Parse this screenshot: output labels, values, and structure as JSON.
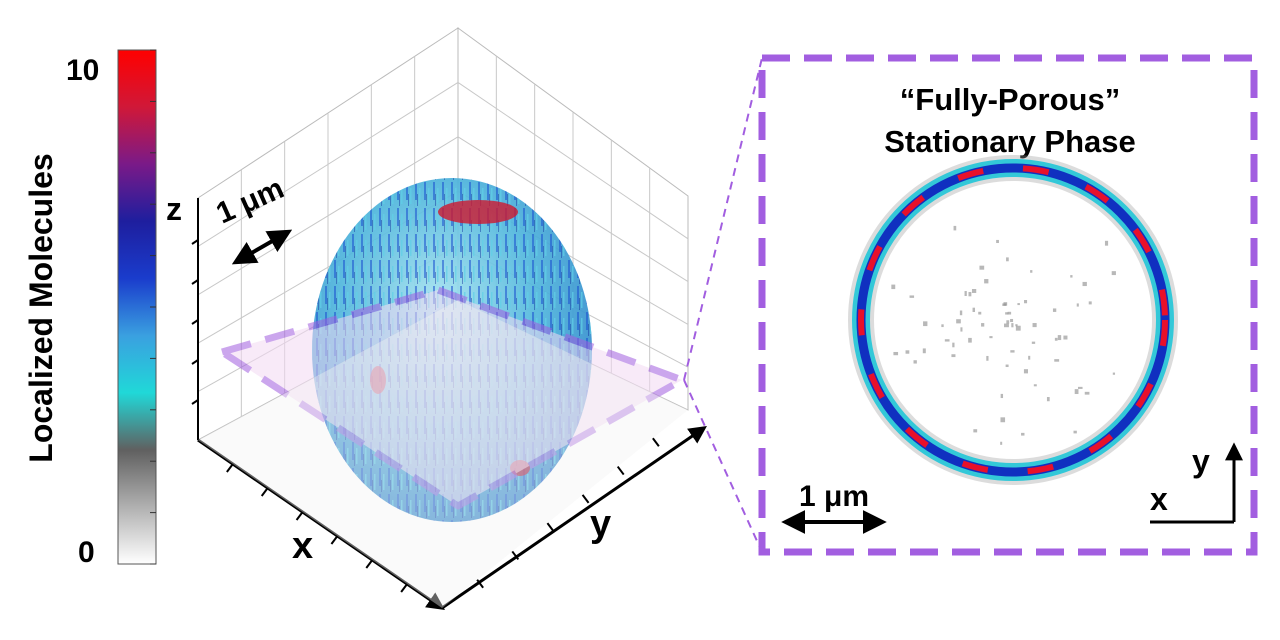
{
  "colorbar": {
    "title": "Localized Molecules",
    "max_label": "10",
    "min_label": "0",
    "stops": [
      "#ffffff",
      "#b0b0b0",
      "#606060",
      "#20d8d8",
      "#3aa0e0",
      "#1a3ccc",
      "#1e1e9e",
      "#7a1a88",
      "#d01838",
      "#ff0000"
    ]
  },
  "plot3d": {
    "x_label": "x",
    "y_label": "y",
    "z_label": "z",
    "scale_label": "1 μm"
  },
  "inset": {
    "title_line1": "“Fully-Porous”",
    "title_line2": "Stationary Phase",
    "scale_label": "1 μm",
    "x_label": "x",
    "y_label": "y"
  },
  "colors": {
    "accent": "#a25ee0",
    "plane_fill": "#f3d9f3",
    "ring_outer": "#33c8d8",
    "ring_mid": "#1030c0",
    "ring_hot": "#e8102a"
  }
}
